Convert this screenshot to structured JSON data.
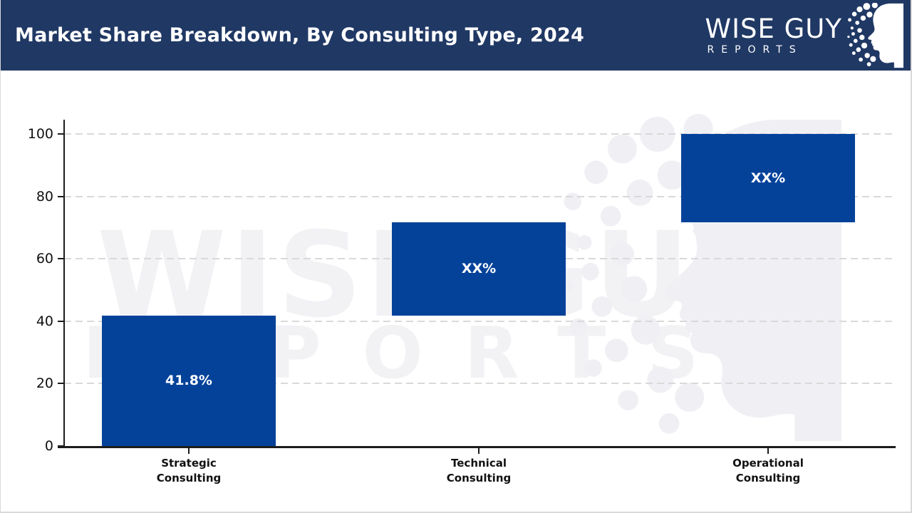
{
  "header": {
    "title": "Market Share Breakdown, By Consulting Type, 2024",
    "logo": {
      "wordmark": "WISE GUY",
      "subtext": "REPORTS"
    }
  },
  "watermark": {
    "wordmark": "WISE GUY",
    "subtext": "REPORTS"
  },
  "chart_data": {
    "type": "bar",
    "subtype": "waterfall",
    "title": "Market Share Breakdown, By Consulting Type, 2024",
    "categories": [
      "Strategic\nConsulting",
      "Technical\nConsulting",
      "Operational\nConsulting"
    ],
    "segments": [
      {
        "category": "Strategic Consulting",
        "start": 0,
        "end": 41.8,
        "label": "41.8%"
      },
      {
        "category": "Technical Consulting",
        "start": 41.8,
        "end": 71.8,
        "label": "XX%"
      },
      {
        "category": "Operational Consulting",
        "start": 71.8,
        "end": 100,
        "label": "XX%"
      }
    ],
    "xlabel": "",
    "ylabel": "",
    "ylim": [
      0,
      104.5
    ],
    "yticks": [
      0,
      20,
      40,
      60,
      80,
      100
    ],
    "grid": true,
    "grid_style": "dashed",
    "legend": false,
    "colors": {
      "bar": "#04429a",
      "bar_label": "#ffffff",
      "grid": "#d9d9d9",
      "axis": "#1c1c1c",
      "tick_label": "#111111",
      "header_bg": "#203864"
    }
  }
}
